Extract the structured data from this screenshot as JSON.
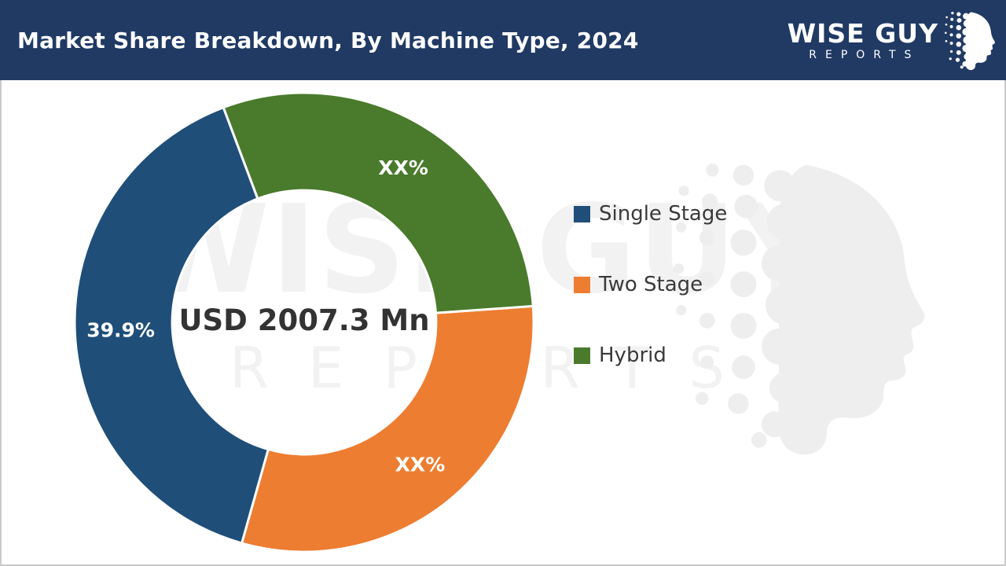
{
  "header": {
    "title": "Market Share Breakdown, By Machine Type, 2024",
    "logo": {
      "line1": "WISE GUY",
      "line2": "REPORTS"
    }
  },
  "watermark": {
    "line1": "WISE GUY",
    "line2": "REPORTS"
  },
  "chart_data": {
    "type": "pie",
    "subtype": "donut",
    "title": "Market Share Breakdown, By Machine Type, 2024",
    "center_label": "USD 2007.3 Mn",
    "start_angle_deg": 110.6,
    "direction": "counterclockwise",
    "inner_radius_ratio": 0.575,
    "legend_position": "right",
    "segments": [
      {
        "name": "Single Stage",
        "label": "39.9%",
        "value": 39.9,
        "color": "#1f4e79"
      },
      {
        "name": "Two Stage",
        "label": "XX%",
        "value": 30.5,
        "color": "#ed7d31"
      },
      {
        "name": "Hybrid",
        "label": "XX%",
        "value": 29.6,
        "color": "#4a7a2b"
      }
    ]
  },
  "colors": {
    "header_bg": "#203a64",
    "center_text": "#333333",
    "legend_text": "#3a3a3a",
    "watermark": "#f2f2f2",
    "border": "#c9c9c9"
  }
}
